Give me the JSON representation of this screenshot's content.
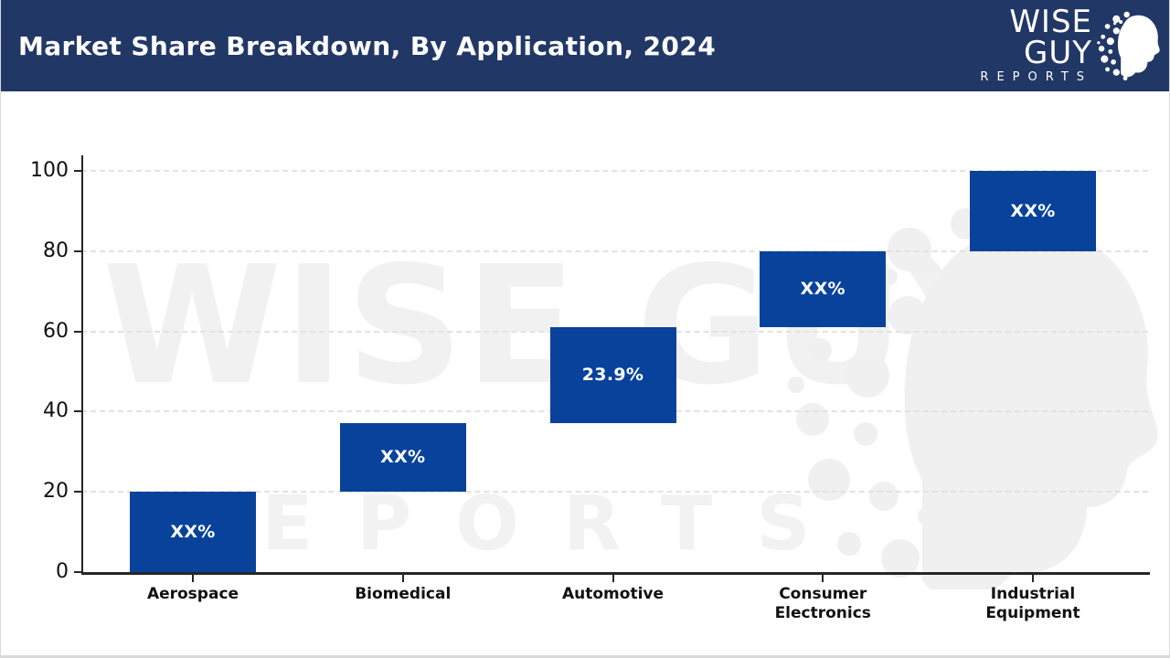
{
  "header": {
    "title": "Market Share Breakdown, By Application, 2024",
    "logo": {
      "line1": "WISE GUY",
      "line2": "REPORTS"
    }
  },
  "watermark": {
    "line1": "WISE GUY",
    "line2": "REPORTS"
  },
  "colors": {
    "header_bg": "#213765",
    "bar": "#09429b",
    "bar_label": "#ffffff",
    "grid": "#e2e2e2",
    "axis": "#262626",
    "watermark": "#f1f1f1"
  },
  "chart_data": {
    "type": "bar",
    "subtype": "waterfall-floating-bars",
    "title": "Market Share Breakdown, By Application, 2024",
    "xlabel": "",
    "ylabel": "",
    "categories": [
      "Aerospace",
      "Biomedical",
      "Automotive",
      "Consumer Electronics",
      "Industrial Equipment"
    ],
    "segments": [
      {
        "category": "Aerospace",
        "start": 0,
        "end": 20,
        "label": "XX%"
      },
      {
        "category": "Biomedical",
        "start": 20,
        "end": 37.2,
        "label": "XX%"
      },
      {
        "category": "Automotive",
        "start": 37.2,
        "end": 61.1,
        "label": "23.9%"
      },
      {
        "category": "Consumer Electronics",
        "start": 61.1,
        "end": 80,
        "label": "XX%"
      },
      {
        "category": "Industrial Equipment",
        "start": 80,
        "end": 100,
        "label": "XX%"
      }
    ],
    "yticks": [
      0,
      20,
      40,
      60,
      80,
      100
    ],
    "ylim": [
      0,
      104
    ],
    "grid": "horizontal-dashed",
    "legend": "none"
  }
}
